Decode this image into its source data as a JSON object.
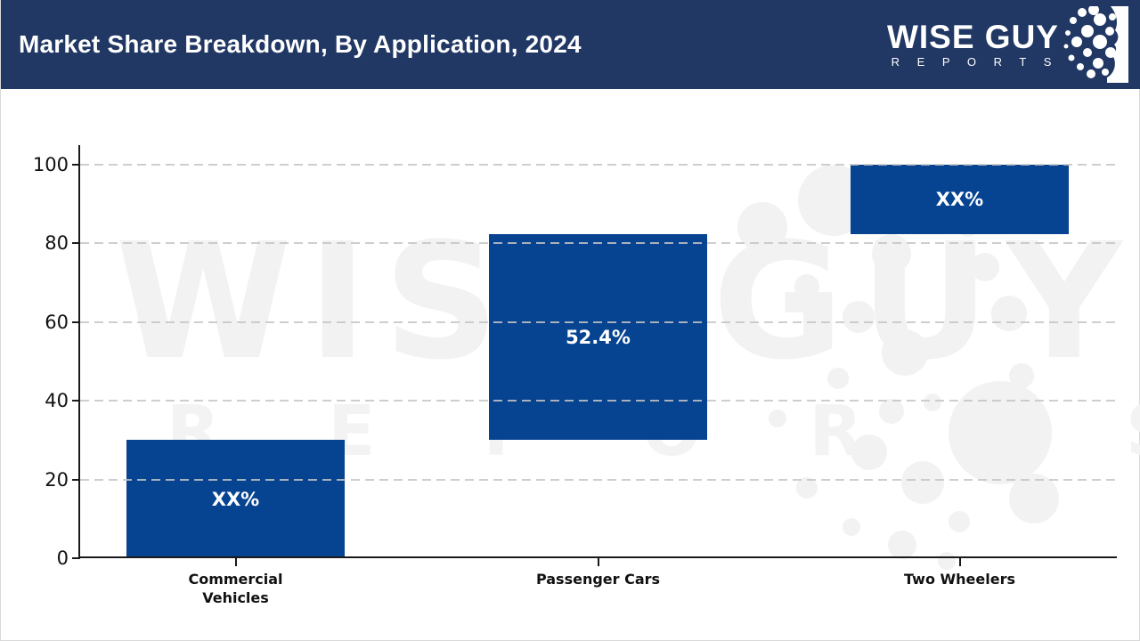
{
  "header": {
    "title": "Market Share Breakdown, By Application, 2024",
    "logo": {
      "line1": "WISE GUY",
      "line2": "R E P O R T S"
    }
  },
  "watermark": {
    "line1": "WISE GUY",
    "line2": "R E P O R T S"
  },
  "chart_data": {
    "type": "bar",
    "subtype": "stacked-floating-segments",
    "title": "Market Share Breakdown, By Application, 2024",
    "categories": [
      {
        "name": "Commercial Vehicles",
        "lines": [
          "Commercial",
          "Vehicles"
        ]
      },
      {
        "name": "Passenger Cars",
        "lines": [
          "Passenger Cars"
        ]
      },
      {
        "name": "Two Wheelers",
        "lines": [
          "Two Wheelers"
        ]
      }
    ],
    "bars": [
      {
        "category": "Commercial Vehicles",
        "start": 0,
        "end": 30,
        "label": "XX%"
      },
      {
        "category": "Passenger Cars",
        "start": 30,
        "end": 82.4,
        "label": "52.4%"
      },
      {
        "category": "Two Wheelers",
        "start": 82.4,
        "end": 100,
        "label": "XX%"
      }
    ],
    "ylim": [
      0,
      100
    ],
    "yticks": [
      0,
      20,
      40,
      60,
      80,
      100
    ],
    "xlabel": "",
    "ylabel": "",
    "grid": "horizontal-dashed",
    "legend": "none",
    "bar_color": "#064390",
    "bar_label_color": "#ffffff"
  },
  "colors": {
    "header_bg": "#213764",
    "bar": "#064390",
    "grid": "#c5c5c5",
    "axis": "#1a1a1a",
    "watermark": "#f2f2f2",
    "page_border": "#d9d9d9"
  }
}
